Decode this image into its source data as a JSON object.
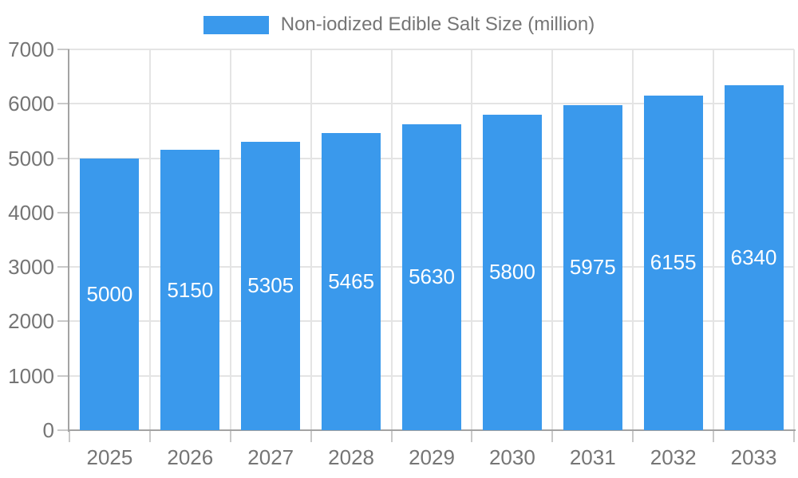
{
  "legend": {
    "label": "Non-iodized Edible Salt Size (million)",
    "swatch_color": "#3A99EC"
  },
  "chart_data": {
    "type": "bar",
    "title": "Non-iodized Edible Salt Size (million)",
    "categories": [
      "2025",
      "2026",
      "2027",
      "2028",
      "2029",
      "2030",
      "2031",
      "2032",
      "2033"
    ],
    "series": [
      {
        "name": "Non-iodized Edible Salt Size (million)",
        "values": [
          5000,
          5150,
          5305,
          5465,
          5630,
          5800,
          5975,
          6155,
          6340
        ],
        "color": "#3A99EC"
      }
    ],
    "bar_value_labels": [
      "5000",
      "5150",
      "5305",
      "5465",
      "5630",
      "5800",
      "5975",
      "6155",
      "6340"
    ],
    "xlabel": "",
    "ylabel": "",
    "ylim": [
      0,
      7000
    ],
    "ytick_step": 1000,
    "ytick_labels": [
      "0",
      "1000",
      "2000",
      "3000",
      "4000",
      "5000",
      "6000",
      "7000"
    ],
    "grid": true,
    "legend_position": "top",
    "value_label_position": "inside-center"
  },
  "colors": {
    "bar": "#3A99EC",
    "bar_label_text": "#FFFFFF",
    "gridline": "#E4E4E4",
    "axis_line": "#A3A3A3",
    "tick": "#C9C9C9",
    "axis_text": "#757575",
    "background": "#FFFFFF"
  }
}
